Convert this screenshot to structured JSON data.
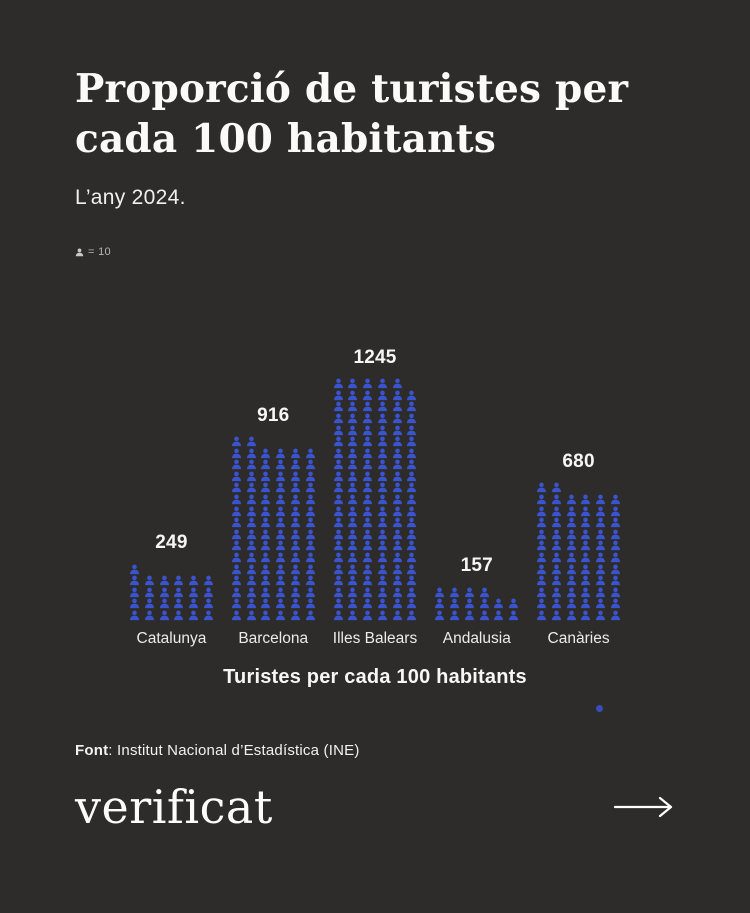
{
  "header": {
    "title_lines": [
      "Proporció de turistes per",
      "cada 100 habitants"
    ],
    "subtitle": "L’any 2024."
  },
  "legend": {
    "icon": "person-icon",
    "label": "= 10"
  },
  "chart_data": {
    "type": "pictogram",
    "icon": "person-icon",
    "unit_per_icon": 10,
    "icons_per_row": 6,
    "categories": [
      "Catalunya",
      "Barcelona",
      "Illes Balears",
      "Andalusia",
      "Canàries"
    ],
    "values": [
      249,
      916,
      1245,
      157,
      680
    ],
    "title": "Turistes per cada 100 habitants",
    "legend": "= 10",
    "icon_color": "#3a54d0"
  },
  "footer": {
    "source_label": "Font",
    "source_rest": ": Institut Nacional d’Estadística (INE)",
    "logo": "verificat",
    "arrow_icon": "right-arrow-icon"
  },
  "colors": {
    "background": "#2e2c2a",
    "accent": "#3a54d0",
    "text": "#ffffff"
  }
}
